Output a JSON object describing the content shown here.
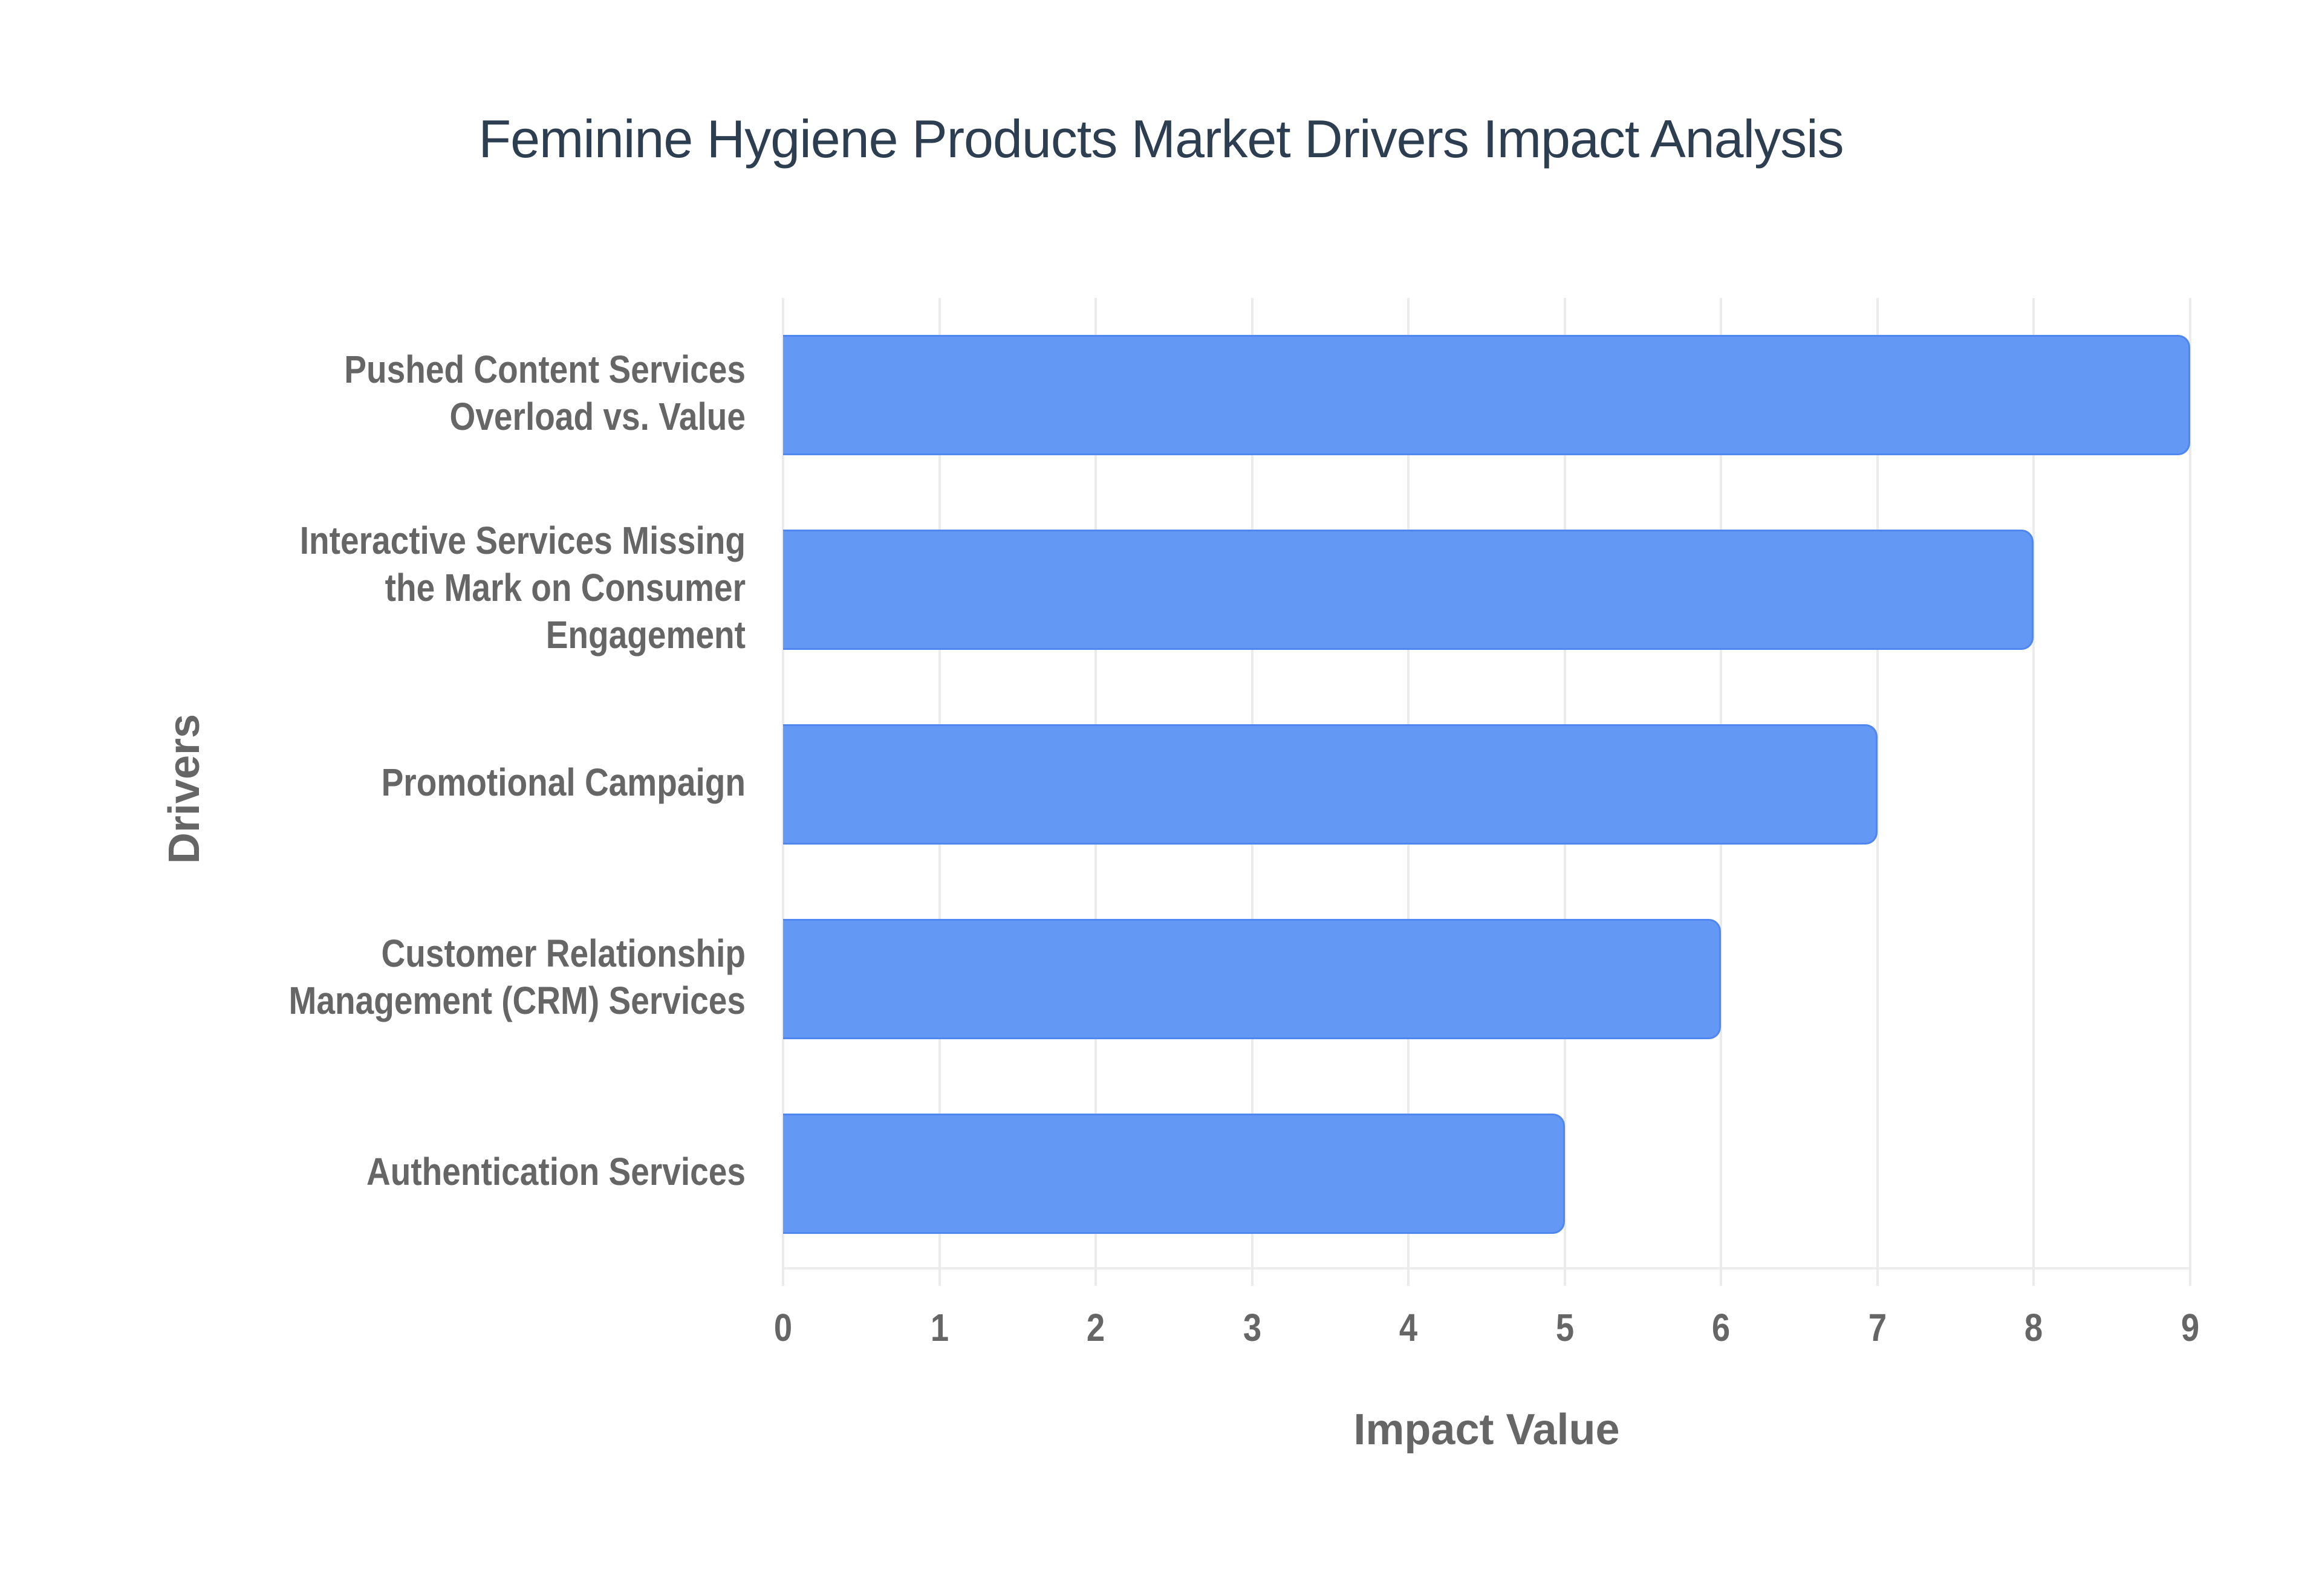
{
  "chart": {
    "title": "Feminine Hygiene Products Market Drivers Impact Analysis",
    "x_axis_title": "Impact Value",
    "y_axis_title": "Drivers",
    "bar_color": "#6399f5",
    "bar_border_color": "#4f86ef",
    "tick_labels": [
      "0",
      "1",
      "2",
      "3",
      "4",
      "5",
      "6",
      "7",
      "8",
      "9"
    ],
    "categories": [
      {
        "label_lines": [
          "Pushed Content Services",
          "Overload vs. Value"
        ],
        "value": 9
      },
      {
        "label_lines": [
          "Interactive Services Missing",
          "the Mark on Consumer",
          "Engagement"
        ],
        "value": 8
      },
      {
        "label_lines": [
          "Promotional Campaign"
        ],
        "value": 7
      },
      {
        "label_lines": [
          "Customer Relationship",
          "Management (CRM) Services"
        ],
        "value": 6
      },
      {
        "label_lines": [
          "Authentication Services"
        ],
        "value": 5
      }
    ]
  },
  "chart_data": {
    "type": "bar",
    "orientation": "horizontal",
    "title": "Feminine Hygiene Products Market Drivers Impact Analysis",
    "xlabel": "Impact Value",
    "ylabel": "Drivers",
    "categories": [
      "Pushed Content Services Overload vs. Value",
      "Interactive Services Missing the Mark on Consumer Engagement",
      "Promotional Campaign",
      "Customer Relationship Management (CRM) Services",
      "Authentication Services"
    ],
    "values": [
      9,
      8,
      7,
      6,
      5
    ],
    "xlim": [
      0,
      9
    ],
    "x_ticks": [
      0,
      1,
      2,
      3,
      4,
      5,
      6,
      7,
      8,
      9
    ],
    "grid": {
      "vertical": true,
      "horizontal": false
    },
    "legend": null,
    "colors": {
      "bar": "#6399f5",
      "title": "#2c3e50",
      "axis_text": "#666666",
      "grid": "#ebebeb"
    }
  }
}
